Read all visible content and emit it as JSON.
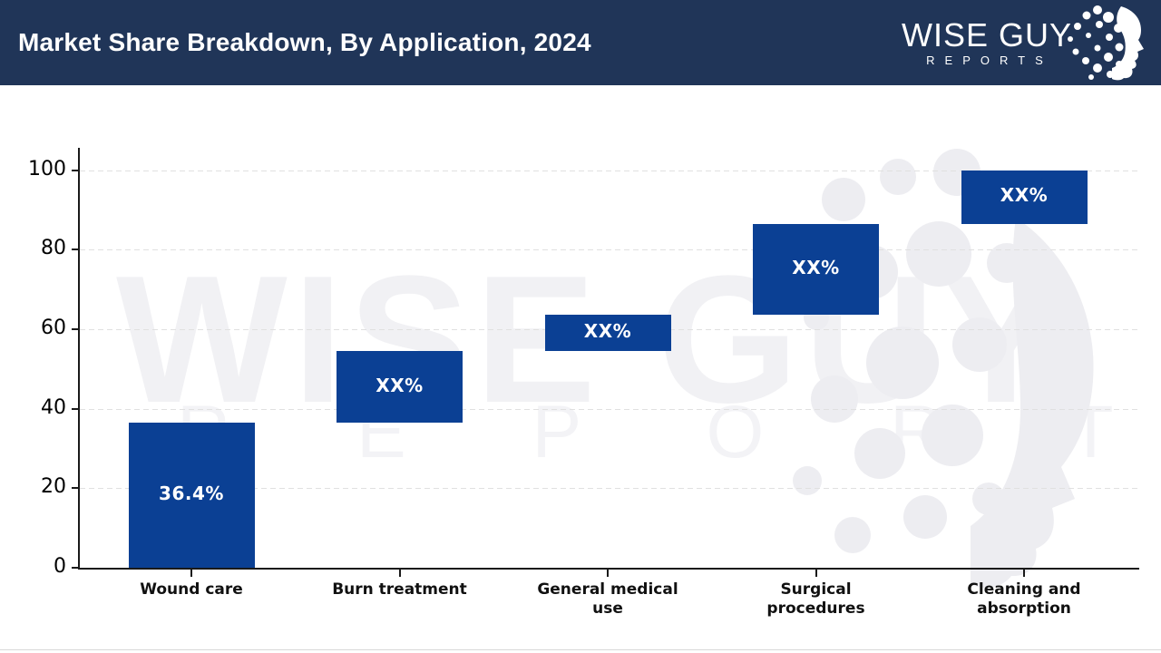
{
  "header": {
    "title": "Market Share Breakdown, By Application, 2024",
    "bg_color": "#203558",
    "logo": {
      "line1": "WISE GUY",
      "line2": "REPORTS"
    }
  },
  "watermark": {
    "line1": "WISE GUY",
    "line2": "R E P O R T S"
  },
  "chart_data": {
    "type": "bar",
    "subtype": "waterfall-segments",
    "title": "Market Share Breakdown, By Application, 2024",
    "categories": [
      "Wound care",
      "Burn treatment",
      "General medical use",
      "Surgical procedures",
      "Cleaning and absorption"
    ],
    "segments": [
      {
        "category": "Wound care",
        "label_lines": "Wound care",
        "start": 0,
        "end": 36.4,
        "value_label": "36.4%"
      },
      {
        "category": "Burn treatment",
        "label_lines": "Burn treatment",
        "start": 36.4,
        "end": 54.5,
        "value_label": "XX%"
      },
      {
        "category": "General medical use",
        "label_lines": "General medical\nuse",
        "start": 54.5,
        "end": 63.6,
        "value_label": "XX%"
      },
      {
        "category": "Surgical procedures",
        "label_lines": "Surgical\nprocedures",
        "start": 63.6,
        "end": 86.4,
        "value_label": "XX%"
      },
      {
        "category": "Cleaning and absorption",
        "label_lines": "Cleaning and\nabsorption",
        "start": 86.4,
        "end": 100,
        "value_label": "XX%"
      }
    ],
    "y_ticks": [
      0,
      20,
      40,
      60,
      80,
      100
    ],
    "ylim": [
      0,
      105.5
    ],
    "xlabel": "",
    "ylabel": "",
    "bar_color": "#0b4094",
    "grid": "horizontal-dashed",
    "legend": "none"
  }
}
